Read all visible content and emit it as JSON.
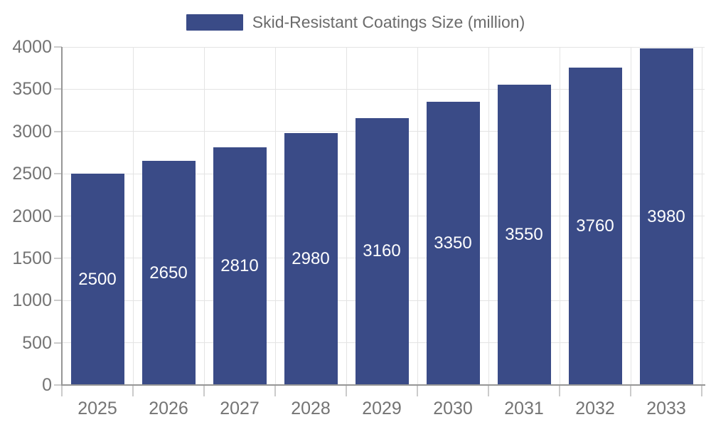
{
  "legend": {
    "label": "Skid-Resistant Coatings Size (million)",
    "swatch_color": "#3a4b87"
  },
  "chart_data": {
    "type": "bar",
    "title": "Skid-Resistant Coatings Size (million)",
    "categories": [
      "2025",
      "2026",
      "2027",
      "2028",
      "2029",
      "2030",
      "2031",
      "2032",
      "2033"
    ],
    "series": [
      {
        "name": "Skid-Resistant Coatings Size (million)",
        "values": [
          2500,
          2650,
          2810,
          2980,
          3160,
          3350,
          3550,
          3760,
          3980
        ]
      }
    ],
    "bar_value_labels": [
      "2500",
      "2650",
      "2810",
      "2980",
      "3160",
      "3350",
      "3550",
      "3760",
      "3980"
    ],
    "xlabel": "",
    "ylabel": "",
    "ylim": [
      0,
      4000
    ],
    "yticks": [
      0,
      500,
      1000,
      1500,
      2000,
      2500,
      3000,
      3500,
      4000
    ],
    "grid": true,
    "legend_position": "top",
    "colors": {
      "bar": "#3a4b87",
      "bar_label": "#ffffff",
      "axis": "#969696",
      "tick": "#cbcbcb",
      "gridline": "#e4e4e4",
      "tick_label": "#747474",
      "legend_text": "#6b6b6b",
      "background": "#ffffff"
    }
  }
}
